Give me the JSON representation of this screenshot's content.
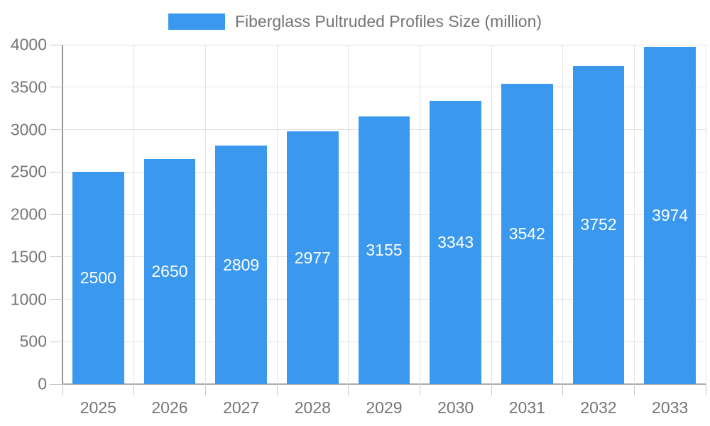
{
  "chart_data": {
    "type": "bar",
    "title": "Fiberglass Pultruded Profiles Size (million)",
    "categories": [
      "2025",
      "2026",
      "2027",
      "2028",
      "2029",
      "2030",
      "2031",
      "2032",
      "2033"
    ],
    "values": [
      2500,
      2650,
      2809,
      2977,
      3155,
      3343,
      3542,
      3752,
      3974
    ],
    "xlabel": "",
    "ylabel": "",
    "ylim": [
      0,
      4000
    ],
    "ytick_step": 500,
    "yticks": [
      "0",
      "500",
      "1000",
      "1500",
      "2000",
      "2500",
      "3000",
      "3500",
      "4000"
    ],
    "grid": true,
    "legend": {
      "position": "top",
      "label": "Fiberglass Pultruded Profiles Size (million)"
    },
    "colors": {
      "bar": "#3A99EF",
      "bar_label": "#ffffff",
      "grid_line": "#e3e3e3",
      "axis_line": "#9e9e9e",
      "tick_line": "#c9c9c9",
      "text": "#757575",
      "background": "#ffffff"
    }
  }
}
